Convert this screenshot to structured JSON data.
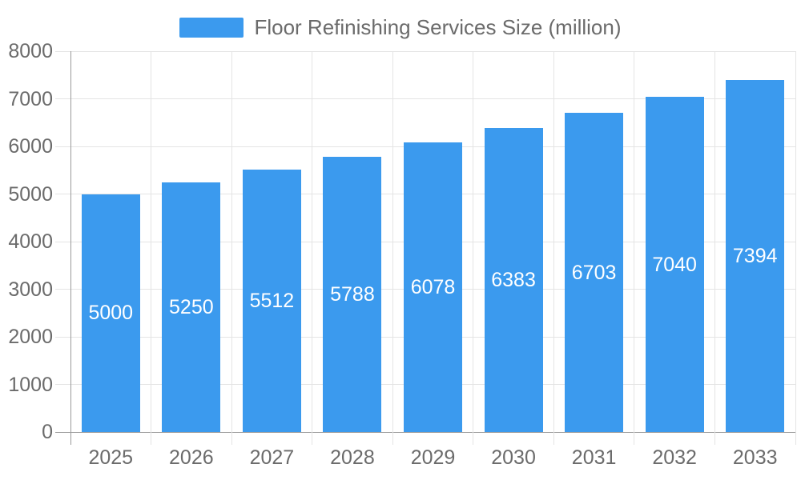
{
  "legend": {
    "label": "Floor Refinishing Services Size (million)"
  },
  "chart_data": {
    "type": "bar",
    "title": "Floor Refinishing Services Size (million)",
    "categories": [
      "2025",
      "2026",
      "2027",
      "2028",
      "2029",
      "2030",
      "2031",
      "2032",
      "2033"
    ],
    "series": [
      {
        "name": "Floor Refinishing Services Size (million)",
        "values": [
          5000,
          5250,
          5512,
          5788,
          6078,
          6383,
          6703,
          7040,
          7394
        ]
      }
    ],
    "xlabel": "",
    "ylabel": "",
    "ylim": [
      0,
      8000
    ],
    "ytick_step": 1000,
    "yticks": [
      0,
      1000,
      2000,
      3000,
      4000,
      5000,
      6000,
      7000,
      8000
    ],
    "grid": true,
    "legend_position": "top-center",
    "bar_value_labels_position": "inside-middle",
    "colors": {
      "bar": "#3b9aee",
      "bar_label": "#ffffff",
      "axis_text": "#6b6b6b",
      "grid_line": "#e4e4e4",
      "axis_line": "#9a9a9a",
      "background": "#ffffff"
    }
  }
}
